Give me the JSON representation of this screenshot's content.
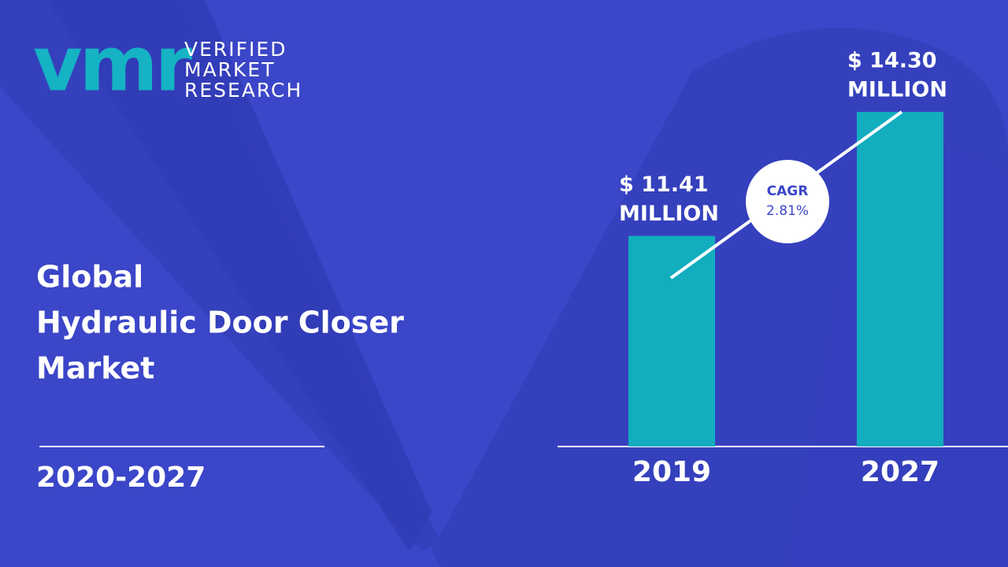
{
  "logo": {
    "mark": "vmr",
    "lines": [
      "VERIFIED",
      "MARKET",
      "RESEARCH"
    ]
  },
  "title_lines": [
    "Global",
    "Hydraulic Door Closer",
    "Market"
  ],
  "period": "2020-2027",
  "chart_data": {
    "type": "bar",
    "categories": [
      "2019",
      "2027"
    ],
    "values": [
      11.41,
      14.3
    ],
    "value_labels": [
      [
        "$ 11.41",
        "MILLION"
      ],
      [
        "$ 14.30",
        "MILLION"
      ]
    ],
    "color": "#12adbf",
    "ylim": [
      6.5,
      15
    ],
    "annotation": {
      "label": "CAGR",
      "text": "2.81%"
    }
  }
}
